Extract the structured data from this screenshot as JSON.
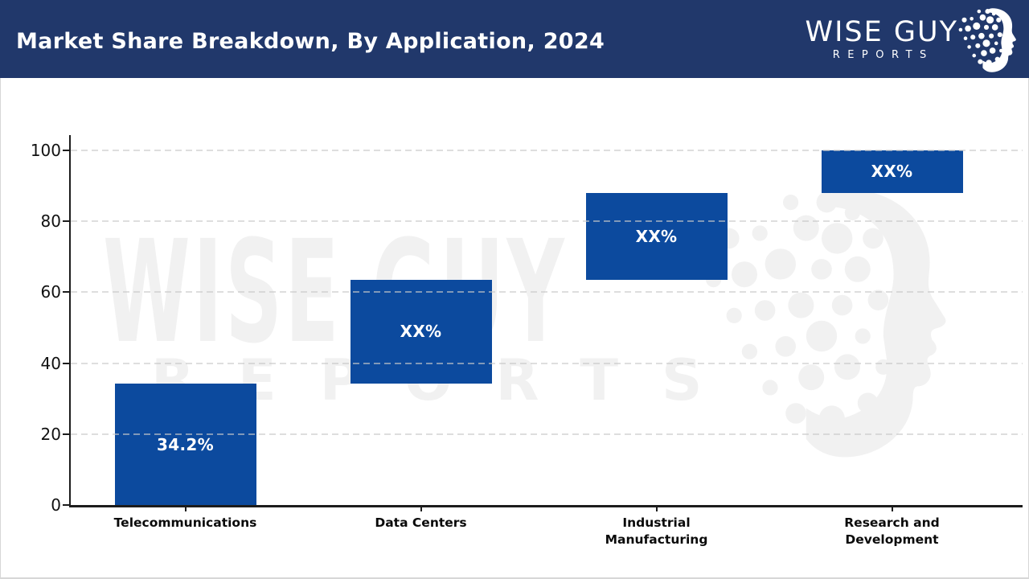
{
  "header": {
    "title": "Market Share Breakdown, By Application, 2024",
    "logo": {
      "line1": "WISE GUY",
      "line2": "REPORTS"
    }
  },
  "watermark": {
    "line1": "WISE GUY",
    "line2": "REPORTS"
  },
  "colors": {
    "header_bg": "#21386B",
    "bar": "#0C4A9E",
    "bar_label": "#FFFFFF",
    "axis": "#1C1C1C",
    "grid": "#C9C9C9",
    "watermark": "#F1F1F1",
    "title_text": "#FFFFFF"
  },
  "chart_data": {
    "type": "bar",
    "subtype": "floating-waterfall-percentage",
    "title": "Market Share Breakdown, By Application, 2024",
    "categories": [
      "Telecommunications",
      "Data Centers",
      "Industrial Manufacturing",
      "Research and Development"
    ],
    "categories_display": [
      "Telecommunications",
      "Data Centers",
      "Industrial\nManufacturing",
      "Research and\nDevelopment"
    ],
    "segments": [
      {
        "category": "Telecommunications",
        "start": 0,
        "end": 34.2,
        "value": 34.2,
        "label": "34.2%"
      },
      {
        "category": "Data Centers",
        "start": 34.2,
        "end": 63.6,
        "value": 29.4,
        "label": "XX%"
      },
      {
        "category": "Industrial Manufacturing",
        "start": 63.6,
        "end": 88.0,
        "value": 24.4,
        "label": "XX%"
      },
      {
        "category": "Research and Development",
        "start": 88.0,
        "end": 100.0,
        "value": 12.0,
        "label": "XX%"
      }
    ],
    "xlabel": "",
    "ylabel": "",
    "ylim": [
      0,
      104
    ],
    "yticks": [
      0,
      20,
      40,
      60,
      80,
      100
    ],
    "grid": "horizontal-dashed",
    "legend": "none"
  }
}
